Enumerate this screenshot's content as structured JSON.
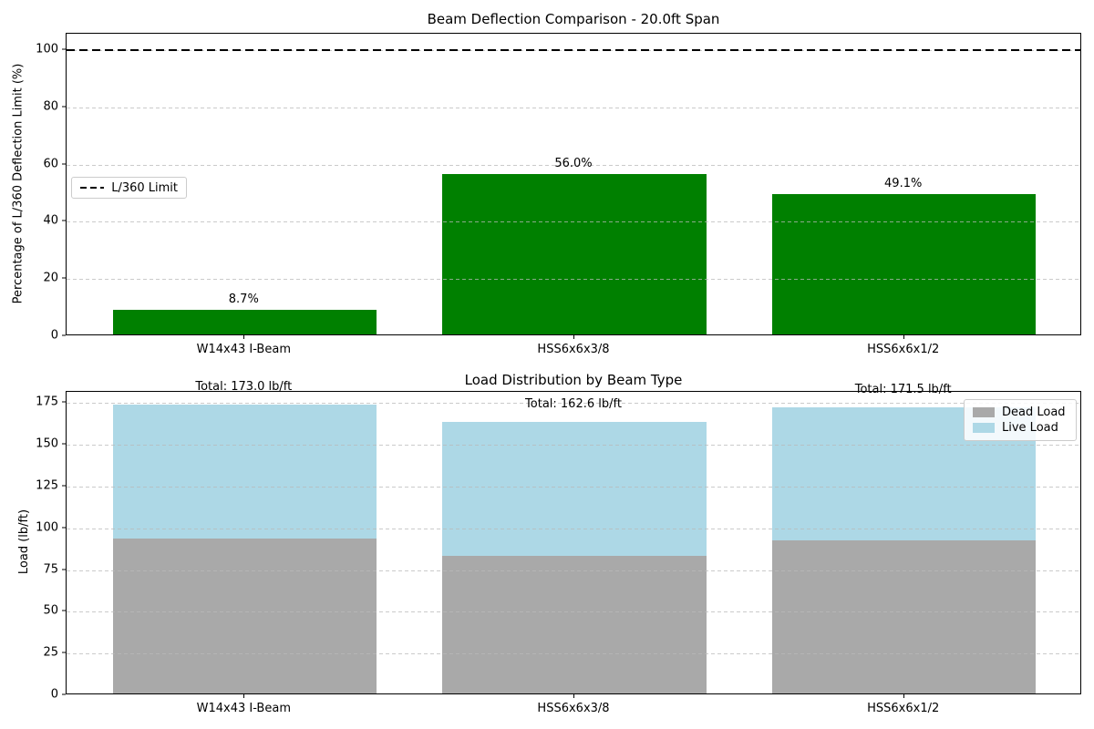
{
  "colors": {
    "deflection_bar": "#008000",
    "dead_load": "#a9a9a9",
    "live_load": "#add8e6",
    "grid": "#b9b9b9",
    "limit_line": "#000000"
  },
  "chart_data": [
    {
      "type": "bar",
      "title": "Beam Deflection Comparison - 20.0ft Span",
      "xlabel": "",
      "ylabel": "Percentage of L/360 Deflection Limit (%)",
      "categories": [
        "W14x43 I-Beam",
        "HSS6x6x3/8",
        "HSS6x6x1/2"
      ],
      "values": [
        8.7,
        56.0,
        49.1
      ],
      "bar_labels": [
        "8.7%",
        "56.0%",
        "49.1%"
      ],
      "yticks": [
        0,
        20,
        40,
        60,
        80,
        100
      ],
      "ylim": [
        0,
        105.7
      ],
      "grid": true,
      "ref_line": {
        "value": 100,
        "style": "dashed",
        "color": "#000000"
      },
      "legend_label": "L/360 Limit",
      "legend_position": "center-left"
    },
    {
      "type": "bar-stacked",
      "title": "Load Distribution by Beam Type",
      "xlabel": "",
      "ylabel": "Load (lb/ft)",
      "categories": [
        "W14x43 I-Beam",
        "HSS6x6x3/8",
        "HSS6x6x1/2"
      ],
      "series": [
        {
          "name": "Dead Load",
          "color_key": "dead_load",
          "values": [
            93.0,
            82.6,
            91.5
          ]
        },
        {
          "name": "Live Load",
          "color_key": "live_load",
          "values": [
            80.0,
            80.0,
            80.0
          ]
        }
      ],
      "totals": [
        173.0,
        162.6,
        171.5
      ],
      "total_labels": [
        "Total: 173.0 lb/ft",
        "Total: 162.6 lb/ft",
        "Total: 171.5 lb/ft"
      ],
      "yticks": [
        0,
        25,
        50,
        75,
        100,
        125,
        150,
        175
      ],
      "ylim": [
        0,
        181.7
      ],
      "grid": true,
      "legend_position": "top-right"
    }
  ]
}
